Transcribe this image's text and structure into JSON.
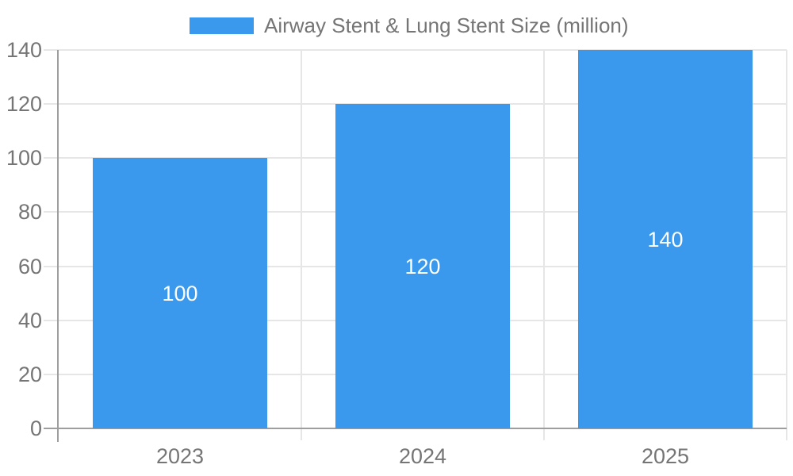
{
  "chart_data": {
    "type": "bar",
    "title": "Airway Stent & Lung Stent Size (million)",
    "categories": [
      "2023",
      "2024",
      "2025"
    ],
    "series": [
      {
        "name": "Airway Stent & Lung Stent Size (million)",
        "values": [
          100,
          120,
          140
        ]
      }
    ],
    "data_labels": [
      "100",
      "120",
      "140"
    ],
    "xlabel": "",
    "ylabel": "",
    "ylim": [
      0,
      140
    ],
    "y_ticks": [
      0,
      20,
      40,
      60,
      80,
      100,
      120,
      140
    ],
    "grid": true,
    "legend_position": "top",
    "colors": {
      "bar": "#3A99ED",
      "gridline": "#E6E6E6",
      "axis_line": "#9E9E9E",
      "tick_label": "#757575",
      "legend_text": "#757575",
      "data_label": "#FFFFFF",
      "background": "#FFFFFF"
    }
  },
  "legend": {
    "label": "Airway Stent & Lung Stent Size (million)"
  }
}
